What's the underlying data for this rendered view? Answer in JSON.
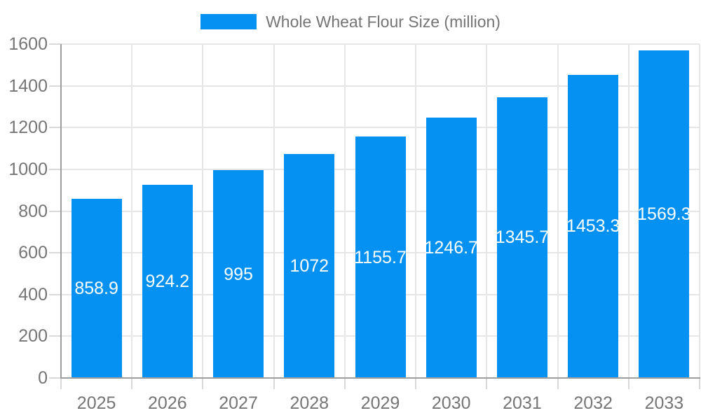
{
  "chart_data": {
    "type": "bar",
    "title": "",
    "legend": {
      "label": "Whole Wheat Flour Size (million)",
      "position": "top"
    },
    "categories": [
      "2025",
      "2026",
      "2027",
      "2028",
      "2029",
      "2030",
      "2031",
      "2032",
      "2033"
    ],
    "series": [
      {
        "name": "Whole Wheat Flour Size (million)",
        "values": [
          858.9,
          924.2,
          995,
          1072,
          1155.7,
          1246.7,
          1345.7,
          1453.3,
          1569.3
        ]
      }
    ],
    "value_labels": [
      "858.9",
      "924.2",
      "995",
      "1072",
      "1155.7",
      "1246.7",
      "1345.7",
      "1453.3",
      "1569.3"
    ],
    "xlabel": "",
    "ylabel": "",
    "ylim": [
      0,
      1600
    ],
    "yticks": [
      0,
      200,
      400,
      600,
      800,
      1000,
      1200,
      1400,
      1600
    ],
    "grid": true,
    "colors": {
      "bar": "#0591f2",
      "value_label": "#ffffff",
      "axis_text": "#757575",
      "grid_line": "#e6e6e6",
      "axis_line": "#9e9e9e",
      "tick_line": "#d9d9d9",
      "background": "#ffffff"
    }
  }
}
